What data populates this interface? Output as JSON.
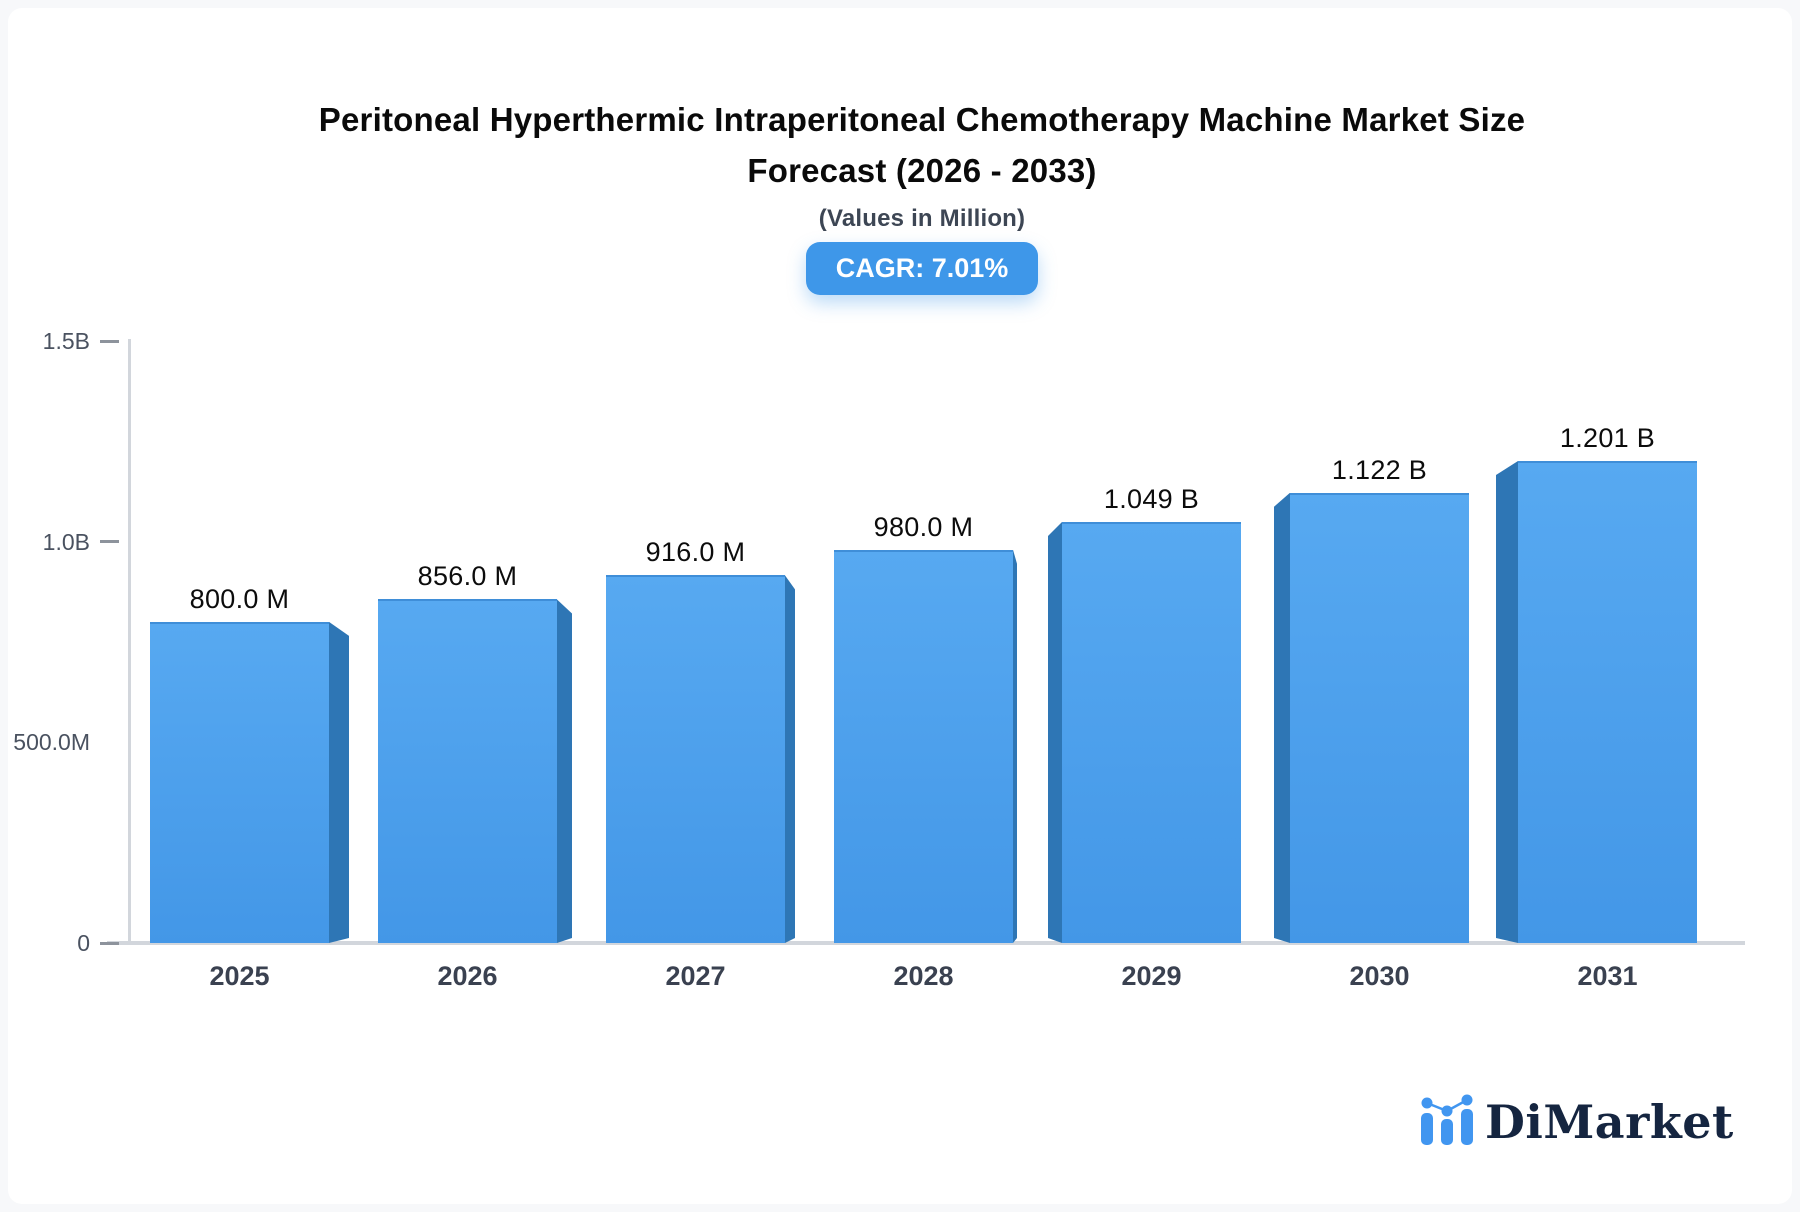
{
  "page": {
    "background": "#f7f8fa",
    "card_background": "#ffffff"
  },
  "header": {
    "title_line1": "Peritoneal Hyperthermic Intraperitoneal Chemotherapy Machine Market Size",
    "title_line2": "Forecast (2026 - 2033)",
    "subtitle": "(Values in Million)",
    "cagr_label": "CAGR: 7.01%",
    "cagr_badge_color": "#3e97e9"
  },
  "chart_data": {
    "type": "bar",
    "title": "Peritoneal Hyperthermic Intraperitoneal Chemotherapy Machine Market Size Forecast (2026 - 2033)",
    "subtitle": "(Values in Million)",
    "categories": [
      "2025",
      "2026",
      "2027",
      "2028",
      "2029",
      "2030",
      "2031"
    ],
    "values_millions": [
      800,
      856,
      916,
      980,
      1049,
      1122,
      1201
    ],
    "bar_labels": [
      "800.0 M",
      "856.0 M",
      "916.0 M",
      "980.0 M",
      "1.049 B",
      "1.122 B",
      "1.201 B"
    ],
    "xlabel": "",
    "ylabel": "",
    "ylim": [
      0,
      1500
    ],
    "y_ticks": [
      {
        "label": "0",
        "value": 0,
        "dash": true
      },
      {
        "label": "500.0M",
        "value": 500,
        "dash": false
      },
      {
        "label": "1.0B",
        "value": 1000,
        "dash": true
      },
      {
        "label": "1.5B",
        "value": 1500,
        "dash": true
      }
    ],
    "grid": false,
    "legend_position": "none",
    "bar_front_color": "#4ba0ec",
    "bar_side_color": "#2e76b5",
    "style": "3d-perspective-bars"
  },
  "footer": {
    "logo_text": "DiMarket",
    "logo_icon": "bar-chart-logo-icon",
    "logo_text_color": "#152540",
    "logo_icon_color": "#4196f0"
  }
}
